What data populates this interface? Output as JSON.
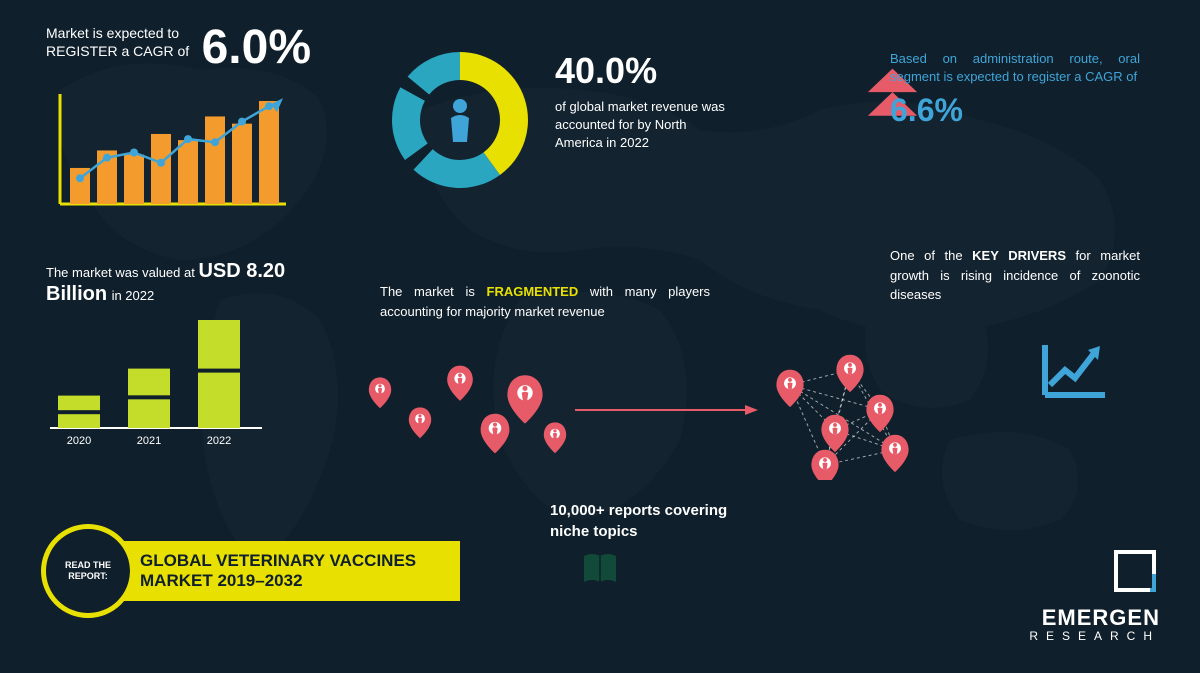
{
  "colors": {
    "bg": "#0f1f2b",
    "world": "#2a3f4e",
    "orange": "#f39c2d",
    "lime": "#c4dd2a",
    "yellow": "#e8e000",
    "blue": "#3fa5d8",
    "teal": "#2aa6c0",
    "coral": "#e75a68",
    "white": "#ffffff"
  },
  "cagr": {
    "label_line1": "Market is expected to",
    "label_line2": "REGISTER a CAGR of",
    "value": "6.0%",
    "bar_chart": {
      "type": "bar_with_line",
      "bar_color": "#f39c2d",
      "line_color": "#3fa5d8",
      "axis_color": "#e8e000",
      "bars": [
        35,
        52,
        48,
        68,
        62,
        85,
        78,
        100
      ],
      "line": [
        25,
        45,
        50,
        40,
        63,
        60,
        80,
        95
      ]
    }
  },
  "donut": {
    "pct": "40.0%",
    "desc": "of global market revenue was accounted for by North America in 2022",
    "segments": [
      {
        "color": "#e8e000",
        "value": 40
      },
      {
        "color": "#2aa6c0",
        "value": 22
      },
      {
        "color": "#0f1f2b",
        "value": 3
      },
      {
        "color": "#2aa6c0",
        "value": 18
      },
      {
        "color": "#0f1f2b",
        "value": 3
      },
      {
        "color": "#2aa6c0",
        "value": 14
      }
    ],
    "inner_icon_color": "#3fa5d8"
  },
  "oral": {
    "text_pre": "Based on administration route, oral segment is expected to register a CAGR of",
    "pct": "6.6%",
    "icon_color": "#e75a68"
  },
  "valued": {
    "pre": "The market was valued at ",
    "value": "USD 8.20 Billion",
    "post": " in 2022",
    "chart": {
      "type": "bar",
      "color": "#c4dd2a",
      "axis_color": "#ffffff",
      "years": [
        "2020",
        "2021",
        "2022"
      ],
      "heights": [
        30,
        55,
        100
      ]
    }
  },
  "fragmented": {
    "pre": "The market is ",
    "highlight": "FRAGMENTED",
    "post": " with many players accounting for majority market revenue",
    "pin_color": "#e75a68",
    "arrow_color": "#e75a68"
  },
  "key_drivers": {
    "pre": "One of the ",
    "bold": "KEY DRIVERS",
    "post": " for market growth is rising incidence of zoonotic diseases",
    "icon_color": "#3fa5d8"
  },
  "report": {
    "circle": "READ THE REPORT:",
    "title_line1": "GLOBAL VETERINARY VACCINES",
    "title_line2": "MARKET 2019–2032"
  },
  "reports": {
    "text": "10,000+ reports covering niche topics",
    "icon_color": "#0f3b2f"
  },
  "logo": {
    "name": "EMERGEN",
    "sub": "RESEARCH",
    "accent": "#3fa5d8"
  }
}
